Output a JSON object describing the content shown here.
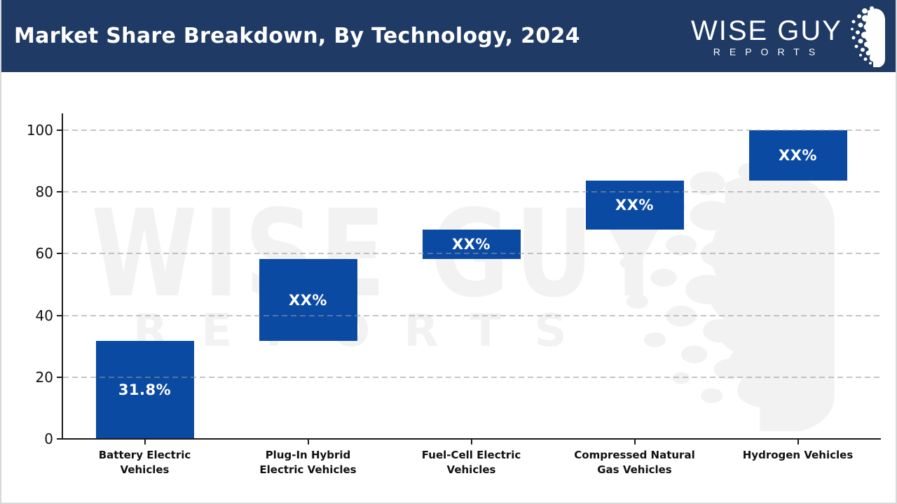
{
  "header": {
    "title": "Market Share Breakdown, By Technology, 2024",
    "logo": {
      "wordmark": "WISE GUY",
      "subtext": "REPORTS"
    },
    "bg_color": "#1f3a64",
    "text_color": "#ffffff"
  },
  "watermark": {
    "wordmark": "WISE GUY",
    "subtext": "REPORTS"
  },
  "chart_data": {
    "type": "bar",
    "subtype": "waterfall",
    "title": "Market Share Breakdown, By Technology, 2024",
    "categories": [
      "Battery Electric Vehicles",
      "Plug-In Hybrid Electric Vehicles",
      "Fuel-Cell Electric Vehicles",
      "Compressed Natural Gas Vehicles",
      "Hydrogen Vehicles"
    ],
    "category_label_lines": [
      [
        "Battery Electric",
        "Vehicles"
      ],
      [
        "Plug-In Hybrid",
        "Electric Vehicles"
      ],
      [
        "Fuel-Cell Electric",
        "Vehicles"
      ],
      [
        "Compressed Natural",
        "Gas Vehicles"
      ],
      [
        "Hydrogen Vehicles"
      ]
    ],
    "segments": [
      {
        "category": "Battery Electric Vehicles",
        "start": 0,
        "end": 31.8,
        "label": "31.8%"
      },
      {
        "category": "Plug-In Hybrid Electric Vehicles",
        "start": 31.8,
        "end": 58.2,
        "label": "XX%"
      },
      {
        "category": "Fuel-Cell Electric Vehicles",
        "start": 58.2,
        "end": 67.8,
        "label": "XX%"
      },
      {
        "category": "Compressed Natural Gas Vehicles",
        "start": 67.8,
        "end": 83.7,
        "label": "XX%"
      },
      {
        "category": "Hydrogen Vehicles",
        "start": 83.7,
        "end": 100,
        "label": "XX%"
      }
    ],
    "yticks": [
      0,
      20,
      40,
      60,
      80,
      100
    ],
    "ylim": [
      0,
      105.2
    ],
    "xlabel": "",
    "ylabel": "",
    "grid": {
      "axis": "y",
      "style": "dashed"
    },
    "legend": "none",
    "bar_color": "#0b4aa2",
    "bar_label_color": "#ffffff"
  }
}
